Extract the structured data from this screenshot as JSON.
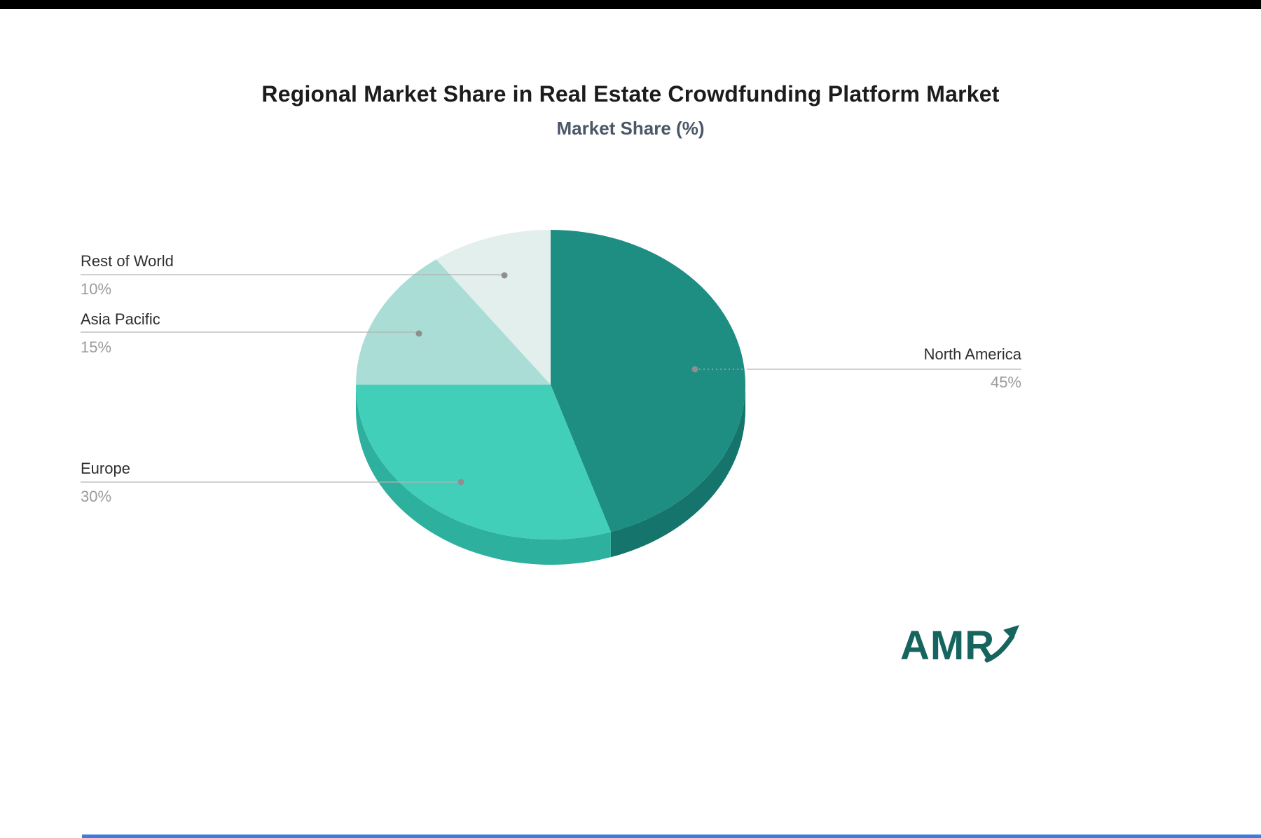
{
  "page": {
    "title": "Regional Market Share in Real Estate Crowdfunding Platform Market",
    "subtitle": "Market Share (%)"
  },
  "brand": {
    "logo_text": "AMR",
    "logo_color": "#15655e"
  },
  "chart_data": {
    "type": "pie",
    "title": "Regional Market Share in Real Estate Crowdfunding Platform Market",
    "subtitle": "Market Share (%)",
    "unit": "%",
    "start_angle_deg": -90,
    "direction": "clockwise",
    "style": "3d-pie",
    "legend": "none",
    "slices": [
      {
        "label": "North America",
        "value": 45,
        "color": "#1e8e82",
        "side_color": "#15746c"
      },
      {
        "label": "Europe",
        "value": 30,
        "color": "#41cfba",
        "side_color": "#2db09e"
      },
      {
        "label": "Asia Pacific",
        "value": 15,
        "color": "#a9ddd5",
        "side_color": "#8cc7be"
      },
      {
        "label": "Rest of World",
        "value": 10,
        "color": "#e2efec",
        "side_color": "#c5dbd8"
      }
    ]
  }
}
